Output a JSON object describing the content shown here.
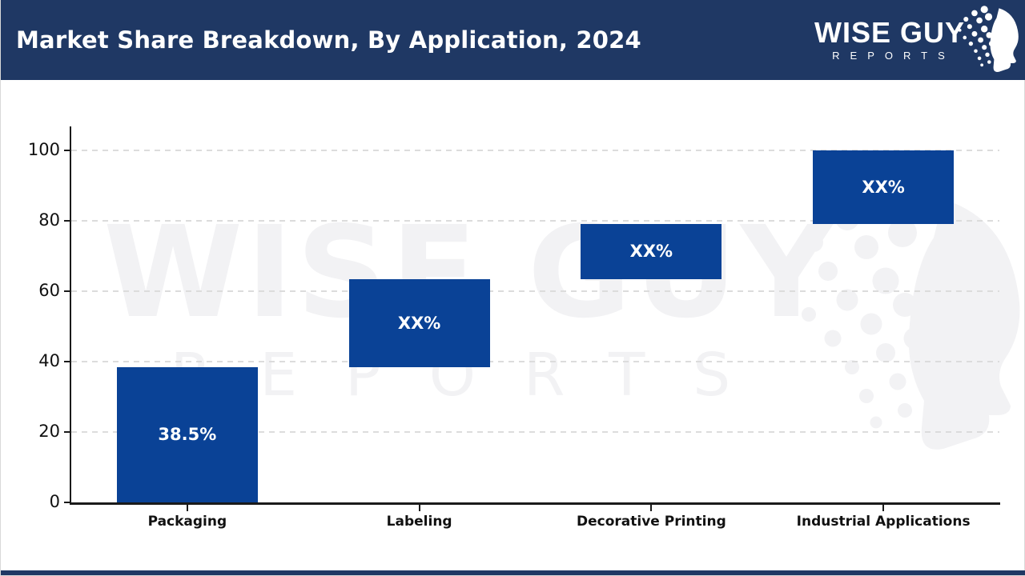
{
  "header": {
    "title": "Market Share Breakdown, By Application, 2024",
    "bg_color": "#1f3864",
    "logo": {
      "line1": "WISE GUY",
      "line2": "REPORTS"
    }
  },
  "watermark": {
    "line1": "WISE GUY",
    "line2": "REPORTS"
  },
  "footer": {
    "bar_color": "#1f3864"
  },
  "chart_data": {
    "type": "bar",
    "subtype": "floating-waterfall",
    "title": "Market Share Breakdown, By Application, 2024",
    "categories": [
      "Packaging",
      "Labeling",
      "Decorative Printing",
      "Industrial Applications"
    ],
    "segments": [
      {
        "category": "Packaging",
        "start": 0,
        "end": 38.5,
        "label": "38.5%"
      },
      {
        "category": "Labeling",
        "start": 38.5,
        "end": 63.5,
        "label": "XX%"
      },
      {
        "category": "Decorative Printing",
        "start": 63.5,
        "end": 79,
        "label": "XX%"
      },
      {
        "category": "Industrial Applications",
        "start": 79,
        "end": 100,
        "label": "XX%"
      }
    ],
    "xlabel": "",
    "ylabel": "",
    "ylim": [
      0,
      100
    ],
    "yticks": [
      0,
      20,
      40,
      60,
      80,
      100
    ],
    "grid": "horizontal-dashed",
    "legend": "none",
    "bar_color": "#0a4296",
    "bar_label_color": "#ffffff",
    "axis_color": "#1a1a1a",
    "grid_color": "#dcdcdc"
  }
}
